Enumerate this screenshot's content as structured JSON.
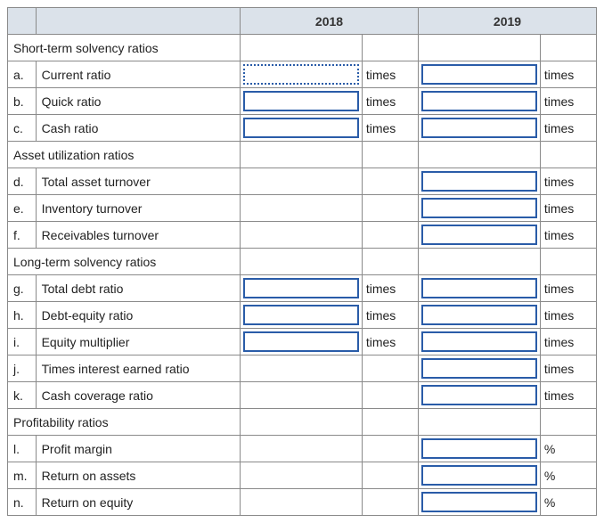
{
  "columns": {
    "y2018": "2018",
    "y2019": "2019"
  },
  "sections": {
    "short_term": "Short-term solvency ratios",
    "asset_util": "Asset utilization ratios",
    "long_term": "Long-term solvency ratios",
    "profit": "Profitability ratios"
  },
  "rows": {
    "a": {
      "letter": "a.",
      "label": "Current ratio",
      "unit2018": "times",
      "unit2019": "times",
      "in2018": "dotted",
      "in2019": "solid"
    },
    "b": {
      "letter": "b.",
      "label": "Quick ratio",
      "unit2018": "times",
      "unit2019": "times",
      "in2018": "solid",
      "in2019": "solid"
    },
    "c": {
      "letter": "c.",
      "label": "Cash ratio",
      "unit2018": "times",
      "unit2019": "times",
      "in2018": "solid",
      "in2019": "solid"
    },
    "d": {
      "letter": "d.",
      "label": "Total asset turnover",
      "unit2018": "",
      "unit2019": "times",
      "in2018": "none",
      "in2019": "solid"
    },
    "e": {
      "letter": "e.",
      "label": "Inventory turnover",
      "unit2018": "",
      "unit2019": "times",
      "in2018": "none",
      "in2019": "solid"
    },
    "f": {
      "letter": "f.",
      "label": "Receivables turnover",
      "unit2018": "",
      "unit2019": "times",
      "in2018": "none",
      "in2019": "solid"
    },
    "g": {
      "letter": "g.",
      "label": "Total debt ratio",
      "unit2018": "times",
      "unit2019": "times",
      "in2018": "solid",
      "in2019": "solid"
    },
    "h": {
      "letter": "h.",
      "label": "Debt-equity ratio",
      "unit2018": "times",
      "unit2019": "times",
      "in2018": "solid",
      "in2019": "solid"
    },
    "i": {
      "letter": "i.",
      "label": "Equity multiplier",
      "unit2018": "times",
      "unit2019": "times",
      "in2018": "solid",
      "in2019": "solid"
    },
    "j": {
      "letter": "j.",
      "label": "Times interest earned ratio",
      "unit2018": "",
      "unit2019": "times",
      "in2018": "none",
      "in2019": "solid"
    },
    "k": {
      "letter": "k.",
      "label": "Cash coverage ratio",
      "unit2018": "",
      "unit2019": "times",
      "in2018": "none",
      "in2019": "solid"
    },
    "l": {
      "letter": "l.",
      "label": "Profit margin",
      "unit2018": "",
      "unit2019": "%",
      "in2018": "none",
      "in2019": "solid"
    },
    "m": {
      "letter": "m.",
      "label": "Return on assets",
      "unit2018": "",
      "unit2019": "%",
      "in2018": "none",
      "in2019": "solid"
    },
    "n": {
      "letter": "n.",
      "label": "Return on equity",
      "unit2018": "",
      "unit2019": "%",
      "in2018": "none",
      "in2019": "solid"
    }
  },
  "style": {
    "border_color": "#8a8a8a",
    "header_bg": "#dbe2ea",
    "input_border": "#2a5ca8",
    "font_family": "Arial",
    "font_size_pt": 11
  }
}
